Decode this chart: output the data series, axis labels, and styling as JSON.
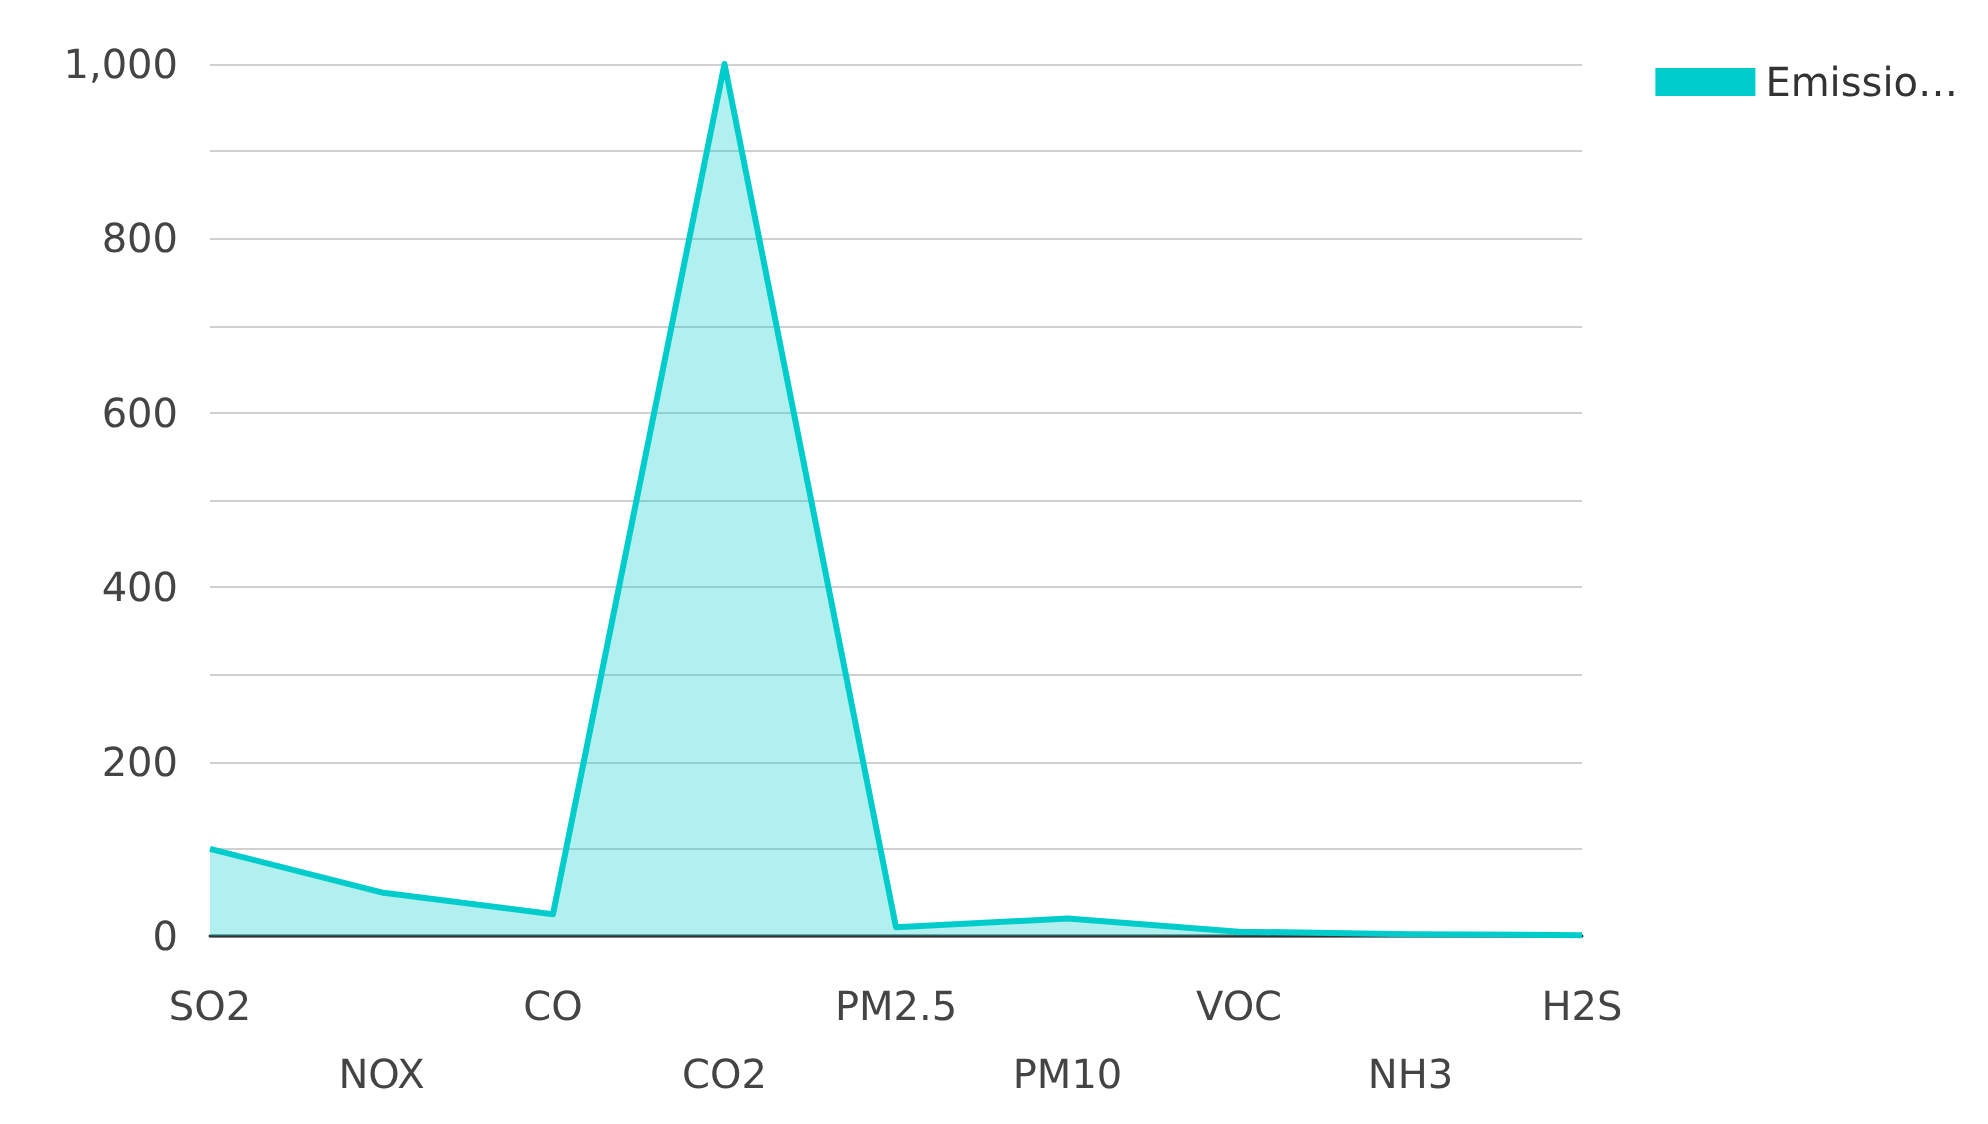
{
  "chart_data": {
    "type": "area",
    "categories": [
      "SO2",
      "NOX",
      "CO",
      "CO2",
      "PM2.5",
      "PM10",
      "VOC",
      "NH3",
      "H2S"
    ],
    "series": [
      {
        "name": "Emissio…",
        "color": "#00cccc",
        "values": [
          100,
          50,
          25,
          1000,
          10,
          20,
          5,
          2,
          1
        ]
      }
    ],
    "ylim": [
      0,
      1000
    ],
    "yticks": [
      0,
      {
        "value": 100,
        "label": null
      },
      200,
      {
        "value": 300,
        "label": null
      },
      400,
      {
        "value": 500,
        "label": null
      },
      600,
      {
        "value": 700,
        "label": null
      },
      800,
      {
        "value": 900,
        "label": null
      },
      {
        "value": 1000,
        "label": "1,000"
      }
    ],
    "grid": "y",
    "legend": "top right"
  }
}
